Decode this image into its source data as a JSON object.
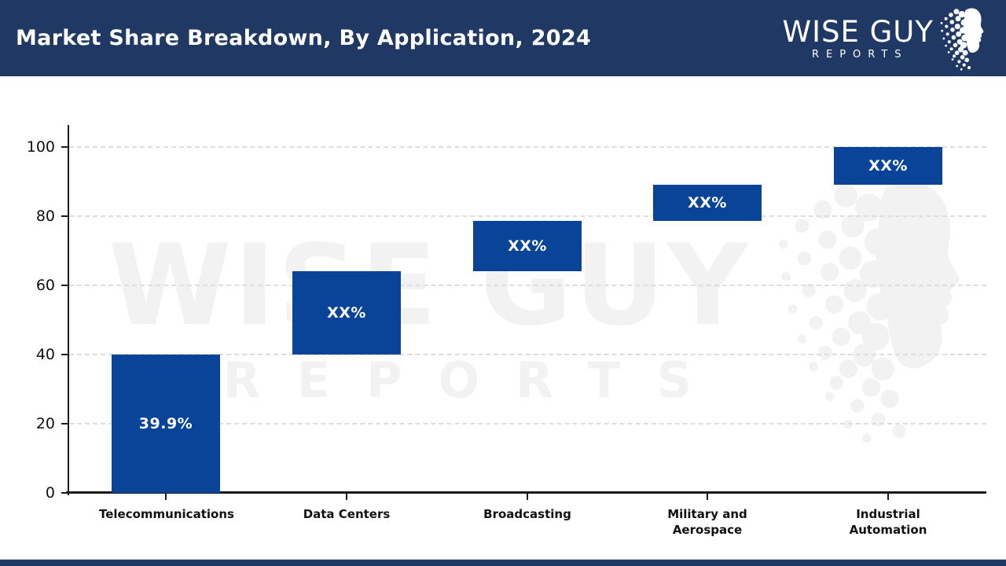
{
  "header": {
    "title": "Market Share Breakdown, By Application, 2024",
    "background_color": "#1f3864",
    "logo": {
      "line1": "WISE GUY",
      "line2": "REPORTS"
    }
  },
  "watermark": {
    "line1": "WISE GUY",
    "line2": "REPORTS",
    "color": "#f2f2f2"
  },
  "chart_data": {
    "type": "bar",
    "subtype": "waterfall",
    "title": "Market Share Breakdown, By Application, 2024",
    "categories": [
      "Telecommunications",
      "Data Centers",
      "Broadcasting",
      "Military and Aerospace",
      "Industrial Automation"
    ],
    "segments": [
      {
        "category": "Telecommunications",
        "category_display": "Telecommunications",
        "start": 0,
        "end": 39.9,
        "label": "39.9%"
      },
      {
        "category": "Data Centers",
        "category_display": "Data Centers",
        "start": 39.9,
        "end": 64.2,
        "label": "XX%"
      },
      {
        "category": "Broadcasting",
        "category_display": "Broadcasting",
        "start": 64.2,
        "end": 78.7,
        "label": "XX%"
      },
      {
        "category": "Military and Aerospace",
        "category_display": "Military and\nAerospace",
        "start": 78.7,
        "end": 89.1,
        "label": "XX%"
      },
      {
        "category": "Industrial Automation",
        "category_display": "Industrial\nAutomation",
        "start": 89.1,
        "end": 100,
        "label": "XX%"
      }
    ],
    "yticks": [
      0,
      20,
      40,
      60,
      80,
      100
    ],
    "ylim": [
      0,
      105
    ],
    "xlabel": "",
    "ylabel": "",
    "grid": "horizontal-dashed",
    "legend": "none",
    "bar_color": "#0a4499",
    "bar_label_color": "#ffffff",
    "axis_color": "#1a1a1a",
    "gridline_color": "#dedede"
  },
  "footer": {
    "bar_color": "#1f3864"
  }
}
